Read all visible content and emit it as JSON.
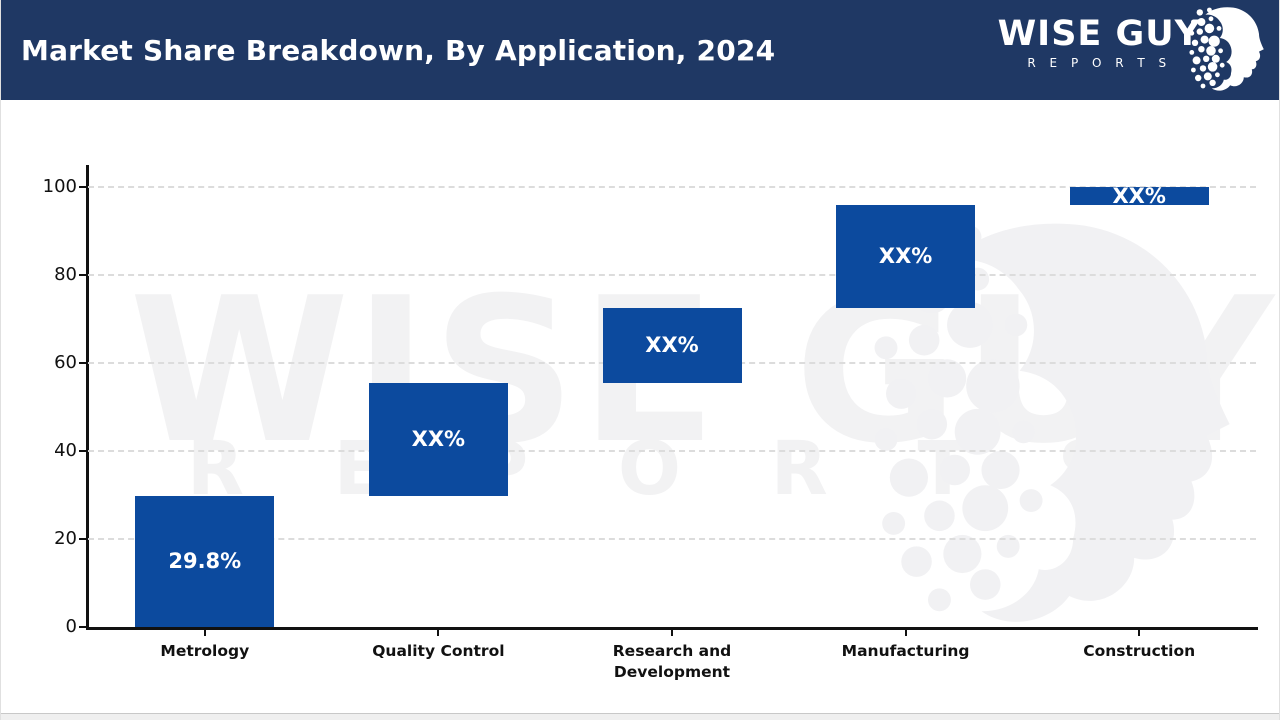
{
  "header": {
    "title": "Market Share Breakdown, By Application, 2024",
    "bg_color": "#1f3864",
    "logo": {
      "line1": "WISE GUY",
      "line2": "R E P O R T S",
      "face_icon": "dotted-head-profile"
    }
  },
  "watermark": {
    "line1": "WISE GUY",
    "line2": "R E P O R T S"
  },
  "chart_data": {
    "type": "bar",
    "subtype": "floating-waterfall",
    "title": "Market Share Breakdown, By Application, 2024",
    "categories": [
      "Metrology",
      "Quality Control",
      "Research and Development",
      "Manufacturing",
      "Construction"
    ],
    "segments": [
      {
        "category": "Metrology",
        "start": 0,
        "end": 29.8,
        "label": "29.8%"
      },
      {
        "category": "Quality Control",
        "start": 29.8,
        "end": 55.5,
        "label": "XX%"
      },
      {
        "category": "Research and Development",
        "start": 55.5,
        "end": 72.5,
        "label": "XX%"
      },
      {
        "category": "Manufacturing",
        "start": 72.5,
        "end": 96,
        "label": "XX%"
      },
      {
        "category": "Construction",
        "start": 96,
        "end": 100,
        "label": "XX%"
      }
    ],
    "xlabel": "",
    "ylabel": "",
    "ylim": [
      0,
      100
    ],
    "yticks": [
      0,
      20,
      40,
      60,
      80,
      100
    ],
    "grid": true,
    "gridline_style": "dashed",
    "legend": "none",
    "bar_color": "#0c4a9e",
    "bar_label_color": "#ffffff",
    "axis_color": "#111111",
    "gridline_color": "#dcdcdc"
  }
}
